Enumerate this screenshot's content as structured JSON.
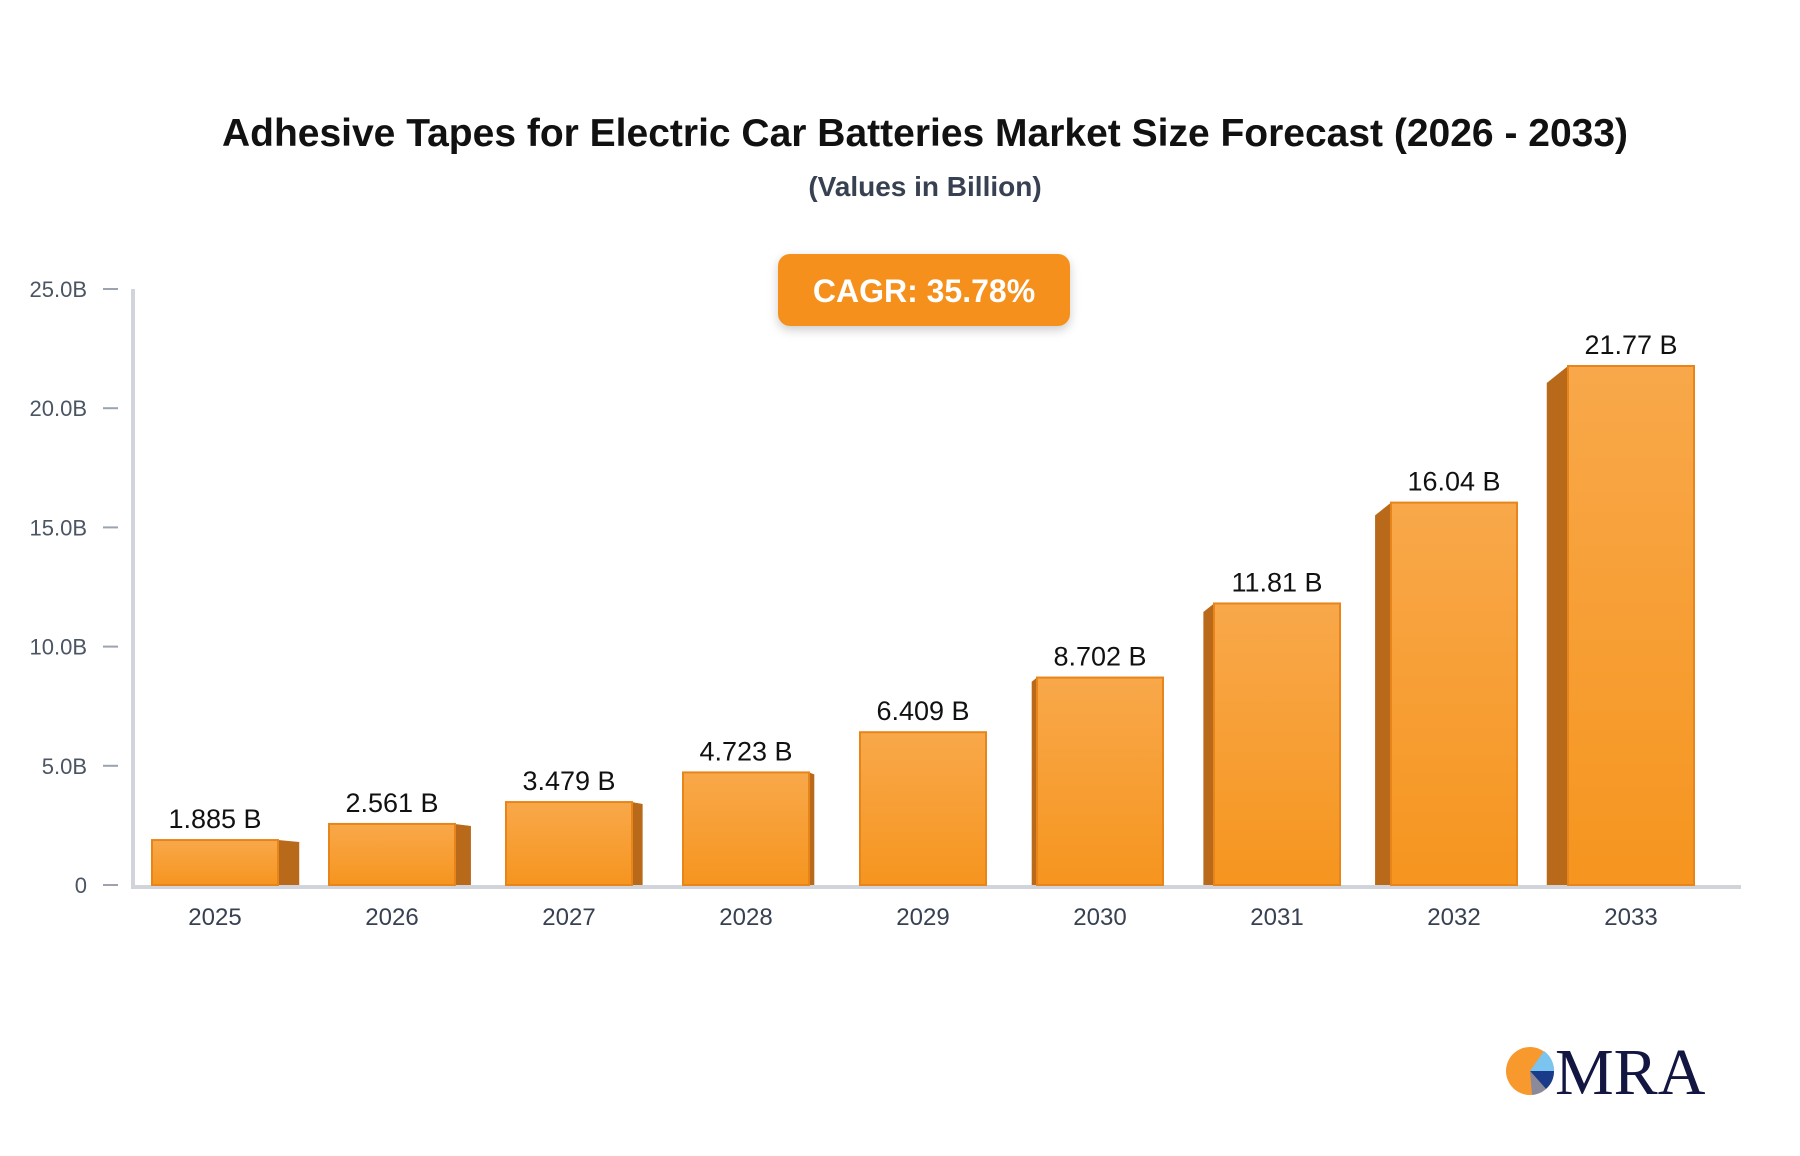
{
  "chart_data": {
    "type": "bar",
    "title": "Adhesive Tapes for Electric Car Batteries Market Size Forecast (2026 - 2033)",
    "subtitle": "(Values in Billion)",
    "categories": [
      "2025",
      "2026",
      "2027",
      "2028",
      "2029",
      "2030",
      "2031",
      "2032",
      "2033"
    ],
    "values": [
      1.885,
      2.561,
      3.479,
      4.723,
      6.409,
      8.702,
      11.81,
      16.04,
      21.77
    ],
    "data_labels": [
      "1.885 B",
      "2.561 B",
      "3.479 B",
      "4.723 B",
      "6.409 B",
      "8.702 B",
      "11.81 B",
      "16.04 B",
      "21.77 B"
    ],
    "yticks": [
      0,
      5,
      10,
      15,
      20,
      25
    ],
    "ytick_labels": [
      "0",
      "5.0B",
      "10.0B",
      "15.0B",
      "20.0B",
      "25.0B"
    ],
    "ylim": [
      0,
      25
    ],
    "xlabel": "",
    "ylabel": "",
    "grid": false,
    "annotation": "CAGR: 35.78%",
    "colors": {
      "bar": "#f7992c",
      "bar_top": "#f8a84a",
      "bar_side": "#b8691a",
      "annotation_bg": "#f5901e",
      "axis": "#d1d5db"
    }
  },
  "logo": {
    "text": "MRA"
  }
}
